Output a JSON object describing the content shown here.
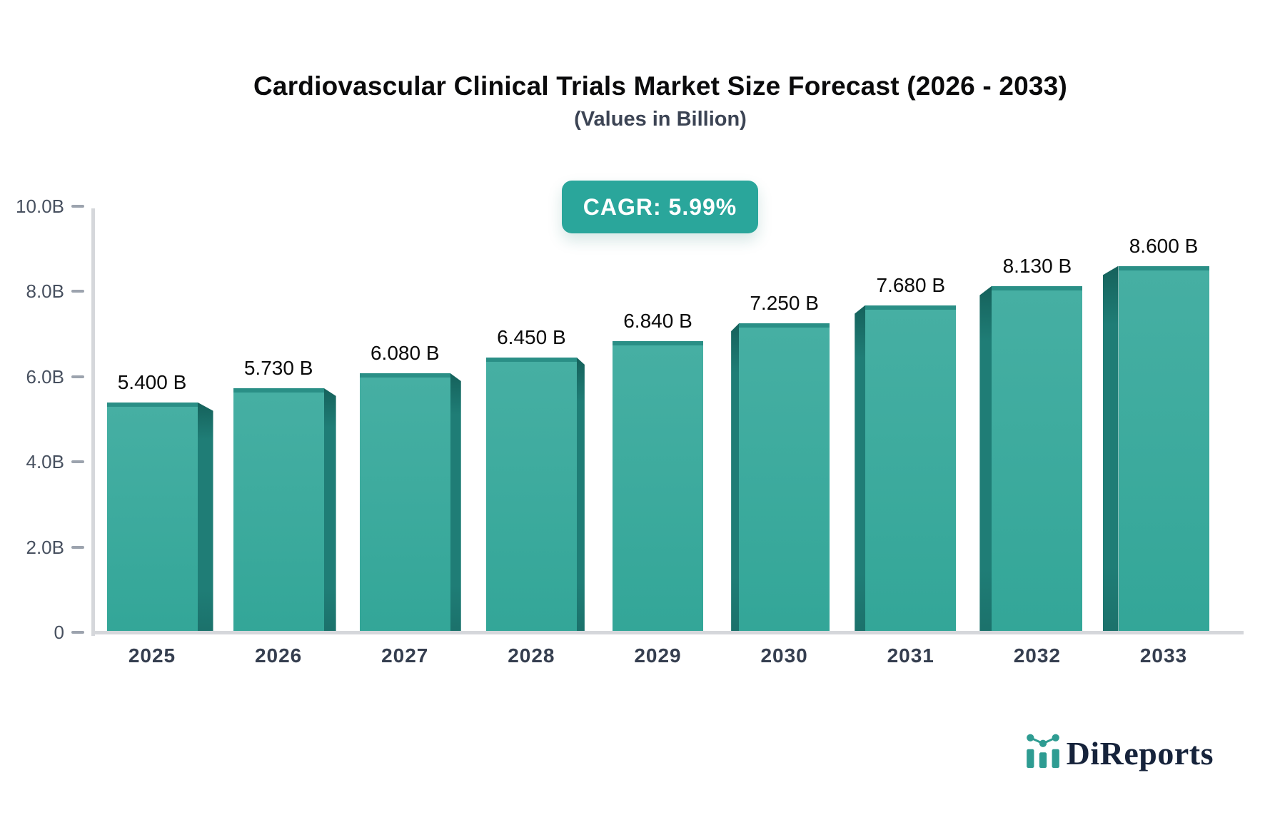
{
  "chart_data": {
    "type": "bar",
    "title": "Cardiovascular Clinical Trials Market Size Forecast (2026 - 2033)",
    "subtitle": "(Values in Billion)",
    "cagr_label": "CAGR: 5.99%",
    "categories": [
      "2025",
      "2026",
      "2027",
      "2028",
      "2029",
      "2030",
      "2031",
      "2032",
      "2033"
    ],
    "values": [
      5.4,
      5.73,
      6.08,
      6.45,
      6.84,
      7.25,
      7.68,
      8.13,
      8.6
    ],
    "bar_labels": [
      "5.400 B",
      "5.730 B",
      "6.080 B",
      "6.450 B",
      "6.840 B",
      "7.250 B",
      "7.680 B",
      "8.130 B",
      "8.600 B"
    ],
    "ylim": [
      0,
      10
    ],
    "y_ticks": [
      {
        "value": 10,
        "label": "10.0B"
      },
      {
        "value": 8,
        "label": "8.0B"
      },
      {
        "value": 6,
        "label": "6.0B"
      },
      {
        "value": 4,
        "label": "4.0B"
      },
      {
        "value": 2,
        "label": "2.0B"
      },
      {
        "value": 0,
        "label": "0"
      }
    ],
    "grid": false,
    "legend": false,
    "colors": {
      "bar_face_top": "#46AFA3",
      "bar_face_bottom": "#33A698",
      "bar_top_edge": "#2A8F86",
      "bar_side": "#1F7D76",
      "bar_side_shadow": "#15615B",
      "badge_bg": "#2AA69B",
      "badge_text": "#FFFFFF",
      "axis_line": "#D5D7DB",
      "tick_dash": "#9CA3AE",
      "y_label": "#47505F",
      "x_label": "#353E4F",
      "value_label": "#0A0A0A",
      "title": "#0B0B0C",
      "subtitle": "#3C4454"
    }
  },
  "logo": {
    "text": "DiReports",
    "text_color": "#16233B",
    "icon_color": "#2E9C92"
  }
}
